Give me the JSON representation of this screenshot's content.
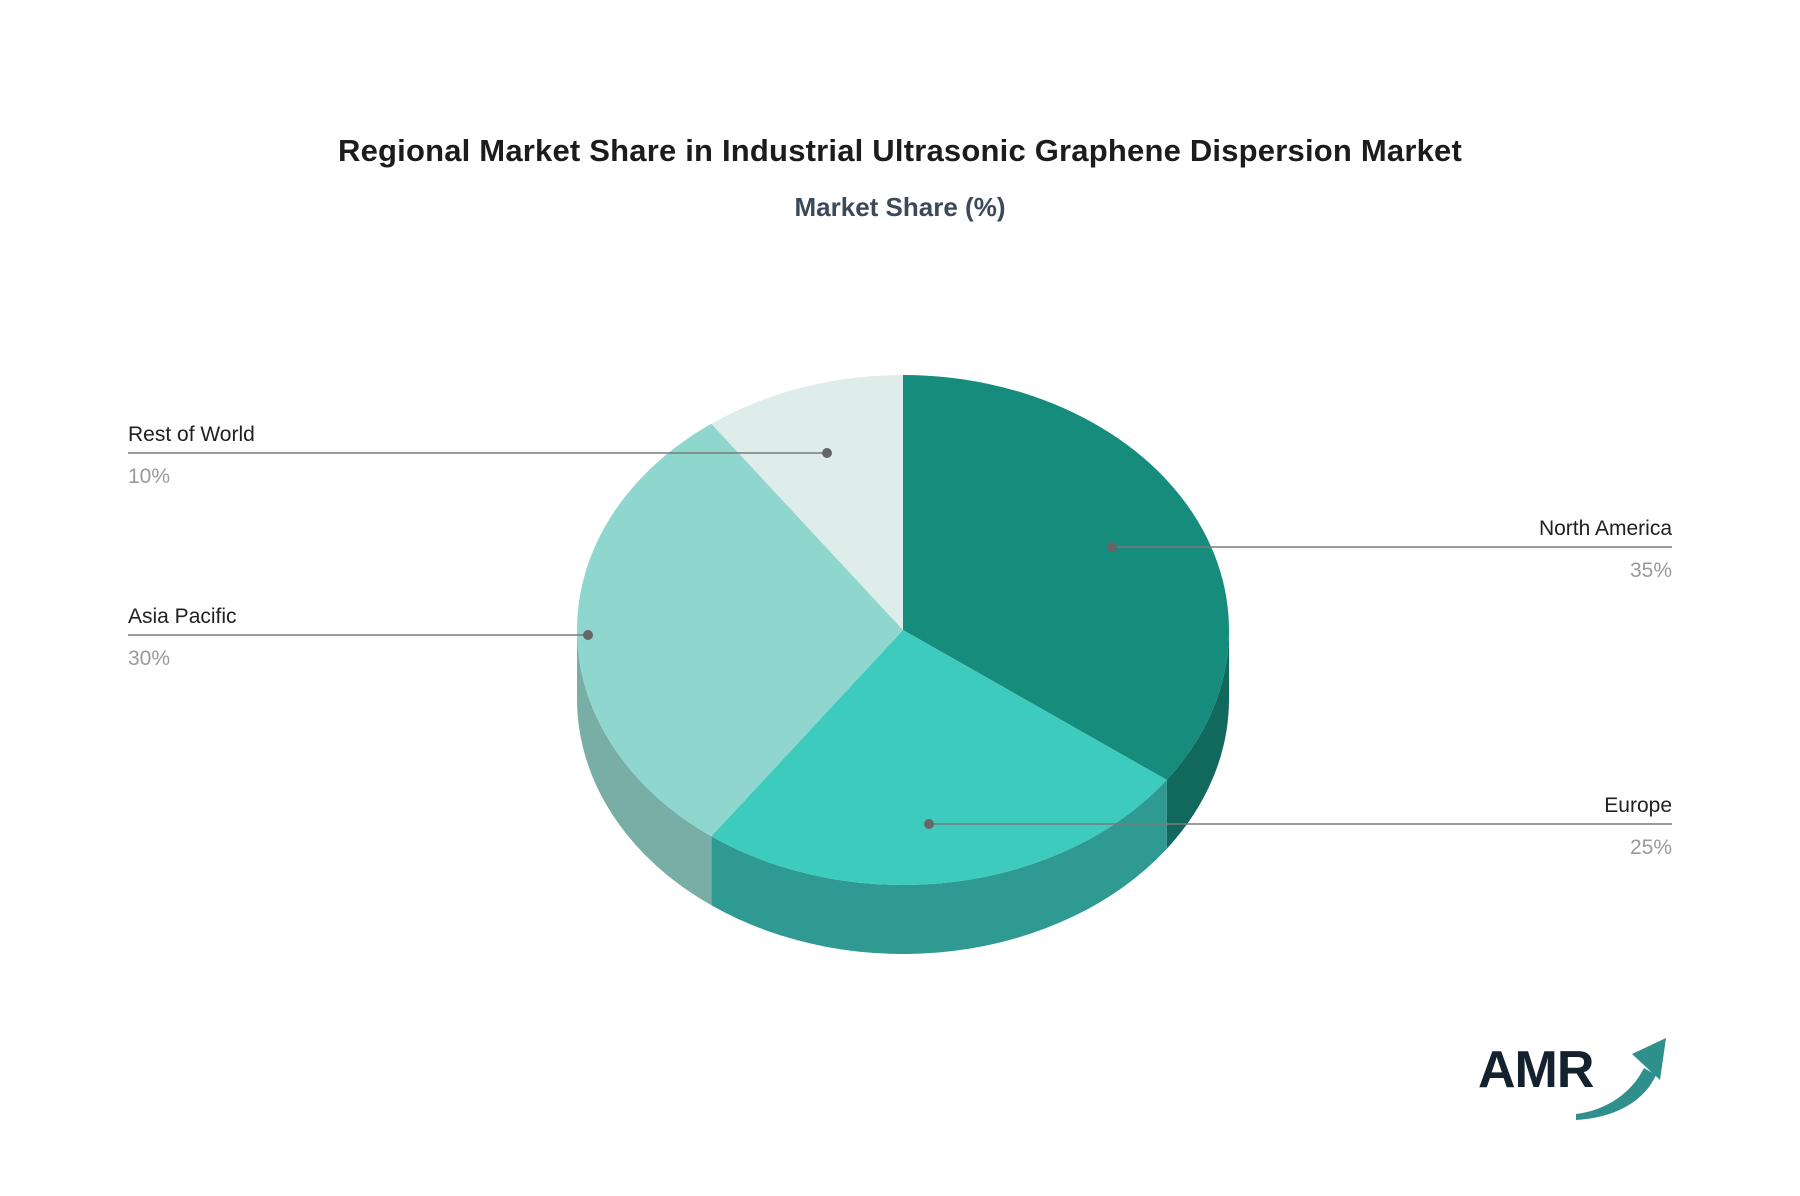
{
  "chart_data": {
    "type": "pie",
    "title": "Regional Market Share in Industrial Ultrasonic Graphene Dispersion Market",
    "subtitle": "Market Share (%)",
    "unit": "%",
    "legend_position": "callout-labels",
    "style": "3d-pie",
    "slices": [
      {
        "label": "North America",
        "value": 35,
        "color": "#168C7D",
        "side_color": "#11685D"
      },
      {
        "label": "Europe",
        "value": 25,
        "color": "#3CCBBC",
        "side_color": "#2E9A91"
      },
      {
        "label": "Asia Pacific",
        "value": 30,
        "color": "#8FD7CE",
        "side_color": "#79AEA7"
      },
      {
        "label": "Rest of World",
        "value": 10,
        "color": "#DEECEA",
        "side_color": "#C2D6D3"
      }
    ]
  },
  "colors": {
    "background": "#ffffff",
    "title_text": "#1c1c1c",
    "subtitle_text": "#3b4a5a",
    "label_text": "#212121",
    "value_text": "#9a9a9a",
    "leader_line": "#7a7a7a",
    "leader_dot": "#666666",
    "logo_text": "#14212e",
    "logo_arrow": "#2E8F8C"
  },
  "logo": {
    "text": "AMR"
  }
}
